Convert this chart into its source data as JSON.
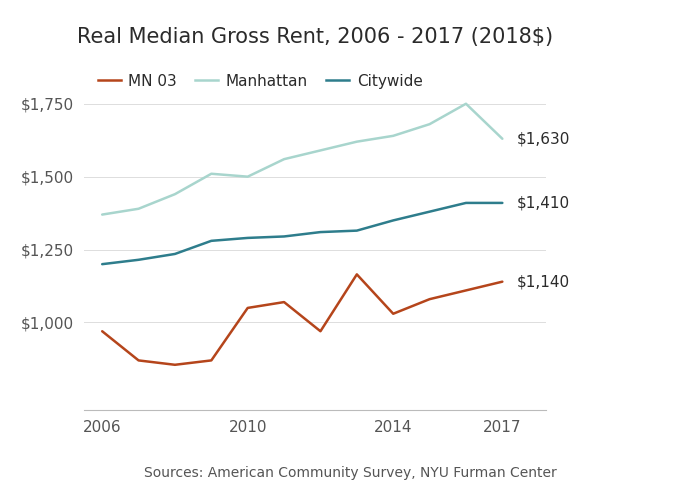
{
  "title": "Real Median Gross Rent, 2006 - 2017 (2018$)",
  "source": "Sources: American Community Survey, NYU Furman Center",
  "years": [
    2006,
    2007,
    2008,
    2009,
    2010,
    2011,
    2012,
    2013,
    2014,
    2015,
    2016,
    2017
  ],
  "mn03": [
    970,
    870,
    855,
    870,
    1050,
    1070,
    970,
    1165,
    1030,
    1080,
    1110,
    1140
  ],
  "manhattan": [
    1370,
    1390,
    1440,
    1510,
    1500,
    1560,
    1590,
    1620,
    1640,
    1680,
    1750,
    1630
  ],
  "citywide": [
    1200,
    1215,
    1235,
    1280,
    1290,
    1295,
    1310,
    1315,
    1350,
    1380,
    1410,
    1410
  ],
  "mn03_color": "#b5451b",
  "manhattan_color": "#a8d5cd",
  "citywide_color": "#2e7d8c",
  "label_mn03": "$1,140",
  "label_manhattan": "$1,630",
  "label_citywide": "$1,410",
  "ylim_bottom": 700,
  "ylim_top": 1900,
  "yticks": [
    1000,
    1250,
    1500,
    1750
  ],
  "xlim_left": 2005.5,
  "xlim_right": 2018.2,
  "xticks": [
    2006,
    2010,
    2014,
    2017
  ],
  "background_color": "#ffffff",
  "legend_labels": [
    "MN 03",
    "Manhattan",
    "Citywide"
  ],
  "linewidth": 1.8,
  "title_fontsize": 15,
  "tick_fontsize": 11,
  "label_fontsize": 11,
  "source_fontsize": 10
}
